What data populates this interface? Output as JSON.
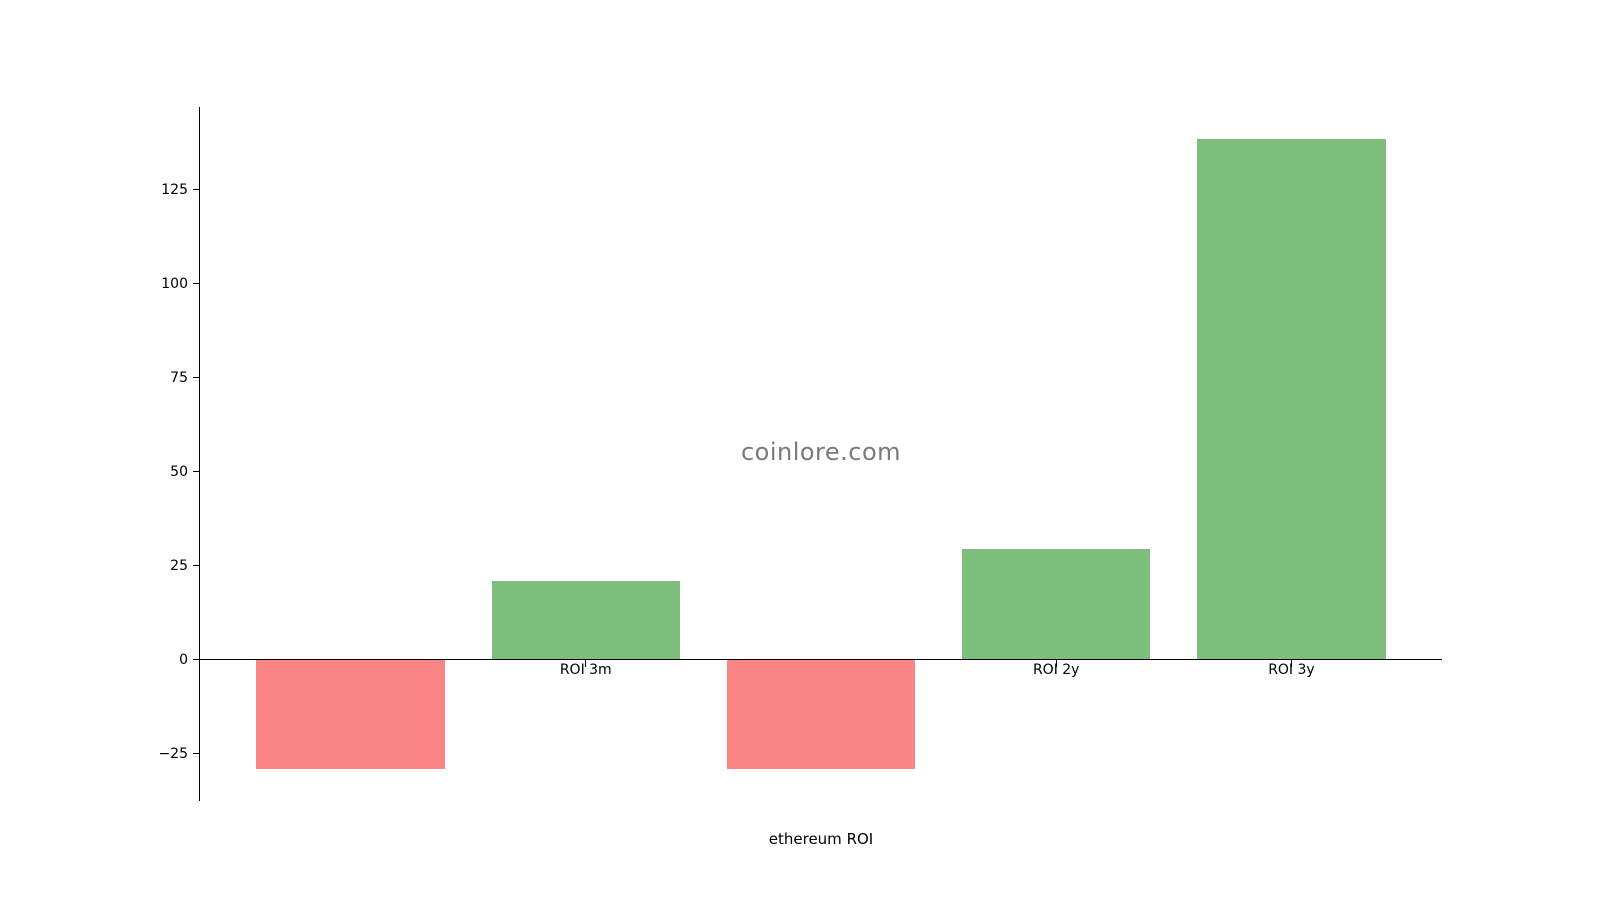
{
  "watermark": "coinlore.com",
  "chart_data": {
    "type": "bar",
    "title": "",
    "xlabel": "ethereum ROI",
    "ylabel": "",
    "categories": [
      "",
      "ROI 3m",
      "",
      "ROI 2y",
      "ROI 3y"
    ],
    "values": [
      -29.2,
      21.0,
      -29.2,
      29.3,
      138.6
    ],
    "positive_color": "#7dbe7c",
    "negative_color": "#fb8484",
    "axis_color": "#000000",
    "watermark_color": "#7a7a7a",
    "ylim": [
      -37.6,
      147.0
    ],
    "xlim": [
      -0.64,
      4.64
    ],
    "bar_width": 0.8,
    "yticks": [
      -25,
      0,
      25,
      50,
      75,
      100,
      125
    ],
    "ytick_labels": [
      "−25",
      "0",
      "25",
      "50",
      "75",
      "100",
      "125"
    ],
    "grid": false,
    "legend_position": "none",
    "notes": "x tick labels of the two negative (red) bars are hidden behind the bars"
  }
}
